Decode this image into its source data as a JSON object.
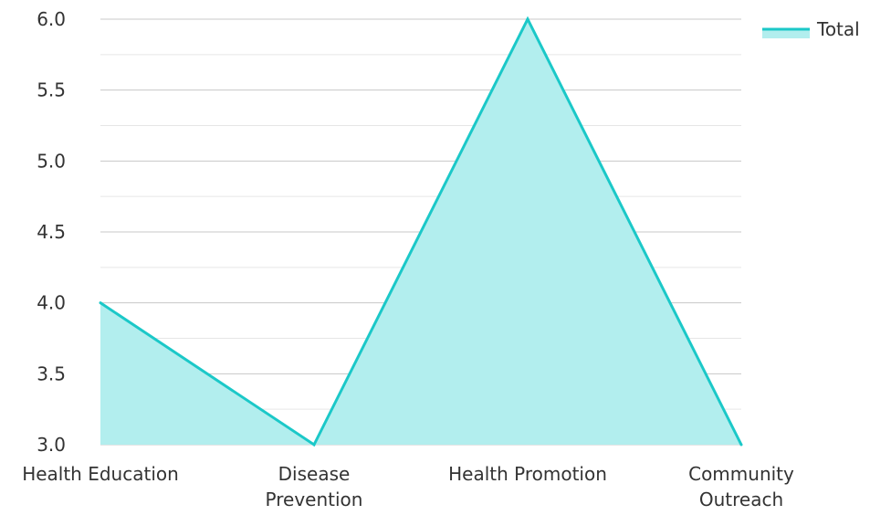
{
  "chart_data": {
    "type": "area",
    "title": "",
    "xlabel": "",
    "ylabel": "",
    "categories": [
      "Health Education",
      "Disease Prevention",
      "Health Promotion",
      "Community Outreach"
    ],
    "category_lines": [
      [
        "Health Education"
      ],
      [
        "Disease",
        "Prevention"
      ],
      [
        "Health Promotion"
      ],
      [
        "Community",
        "Outreach"
      ]
    ],
    "series": [
      {
        "name": "Total",
        "values": [
          4,
          3,
          6,
          3
        ]
      }
    ],
    "ylim": [
      3.0,
      6.0
    ],
    "yticks": [
      "3.0",
      "3.5",
      "4.0",
      "4.5",
      "5.0",
      "5.5",
      "6.0"
    ],
    "grid": true,
    "legend_position": "top-right",
    "colors": {
      "line": "#1BC8C8",
      "fill": "#B2EEEE",
      "grid_major": "#C8C8C8",
      "grid_minor": "#E6E6E6",
      "text": "#333333"
    }
  }
}
